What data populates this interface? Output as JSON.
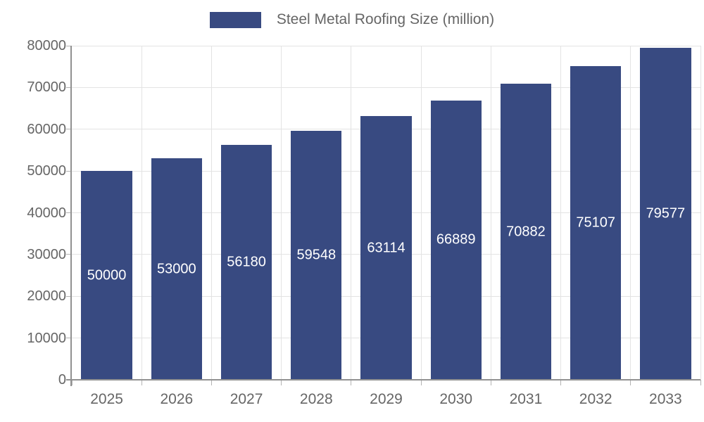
{
  "chart_data": {
    "type": "bar",
    "title": "Steel Metal Roofing Size (million)",
    "legend": [
      "Steel Metal Roofing Size (million)"
    ],
    "legend_position": "top-center",
    "categories": [
      "2025",
      "2026",
      "2027",
      "2028",
      "2029",
      "2030",
      "2031",
      "2032",
      "2033"
    ],
    "series": [
      {
        "name": "Steel Metal Roofing Size (million)",
        "values": [
          50000,
          53000,
          56180,
          59548,
          63114,
          66889,
          70882,
          75107,
          79577
        ]
      }
    ],
    "xlabel": "",
    "ylabel": "",
    "ylim": [
      0,
      80000
    ],
    "ytick_step": 10000,
    "yticks": [
      0,
      10000,
      20000,
      30000,
      40000,
      50000,
      60000,
      70000,
      80000
    ],
    "grid": true,
    "bar_labels_inside": true,
    "colors": {
      "bar": "#384a81",
      "bar_label": "#ffffff",
      "axis_text": "#666666",
      "grid": "#e3e3e3",
      "axis_line": "#b3b3b3",
      "spine": "#919191",
      "background": "#ffffff"
    }
  }
}
